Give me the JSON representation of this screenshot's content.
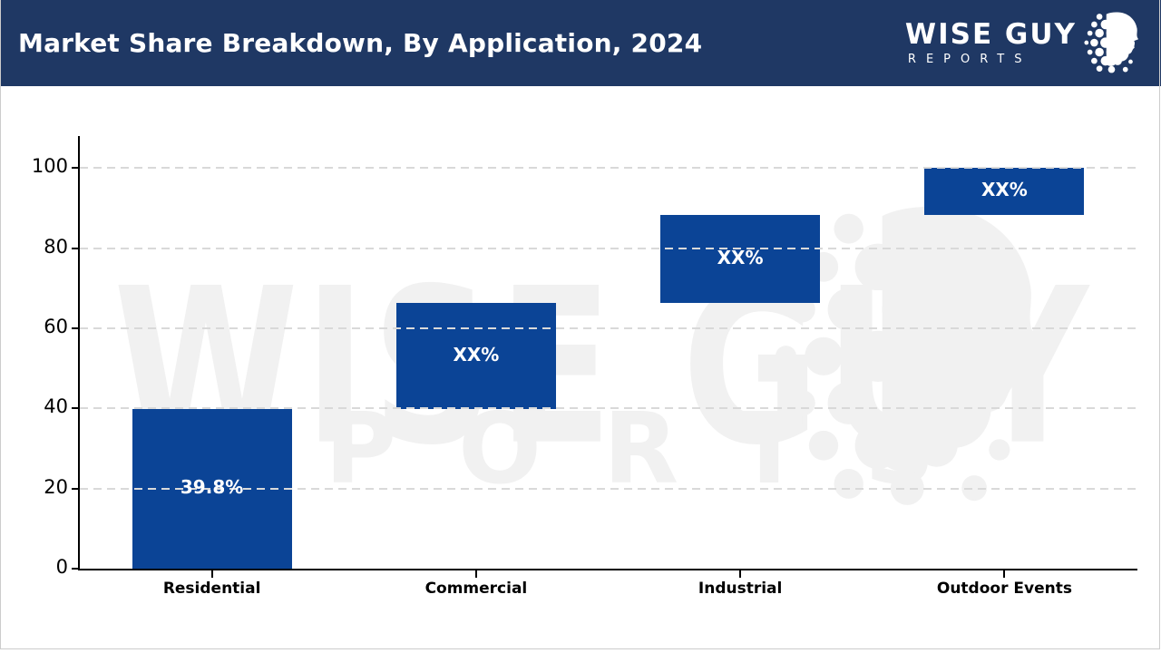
{
  "header": {
    "title": "Market Share Breakdown, By Application, 2024",
    "brand": {
      "line1": "WISE GUY",
      "line2": "REPORTS"
    }
  },
  "watermark": {
    "line1": "WISE GUY",
    "line2": "PORTS"
  },
  "chart_data": {
    "type": "bar",
    "subtype": "waterfall-floating-bars",
    "title": "Market Share Breakdown, By Application, 2024",
    "categories": [
      "Residential",
      "Commercial",
      "Industrial",
      "Outdoor Events"
    ],
    "bars": [
      {
        "category": "Residential",
        "start": 0,
        "end": 39.8,
        "label": "39.8%"
      },
      {
        "category": "Commercial",
        "start": 39.8,
        "end": 66.4,
        "label": "XX%"
      },
      {
        "category": "Industrial",
        "start": 66.4,
        "end": 88.2,
        "label": "XX%"
      },
      {
        "category": "Outdoor Events",
        "start": 88.2,
        "end": 100,
        "label": "XX%"
      }
    ],
    "xlabel": "",
    "ylabel": "",
    "yticks": [
      0,
      20,
      40,
      60,
      80,
      100
    ],
    "ylim": [
      0,
      108
    ],
    "grid": "dashed-horizontal-over-bars",
    "legend": "none",
    "bar_color": "#0b4496",
    "grid_color": "#d9d9d9",
    "axis_color": "#000000",
    "value_label_color": "#ffffff",
    "tick_label_color": "#000000",
    "header_bg": "#1f3864",
    "watermark_color": "#f1f1f1"
  }
}
